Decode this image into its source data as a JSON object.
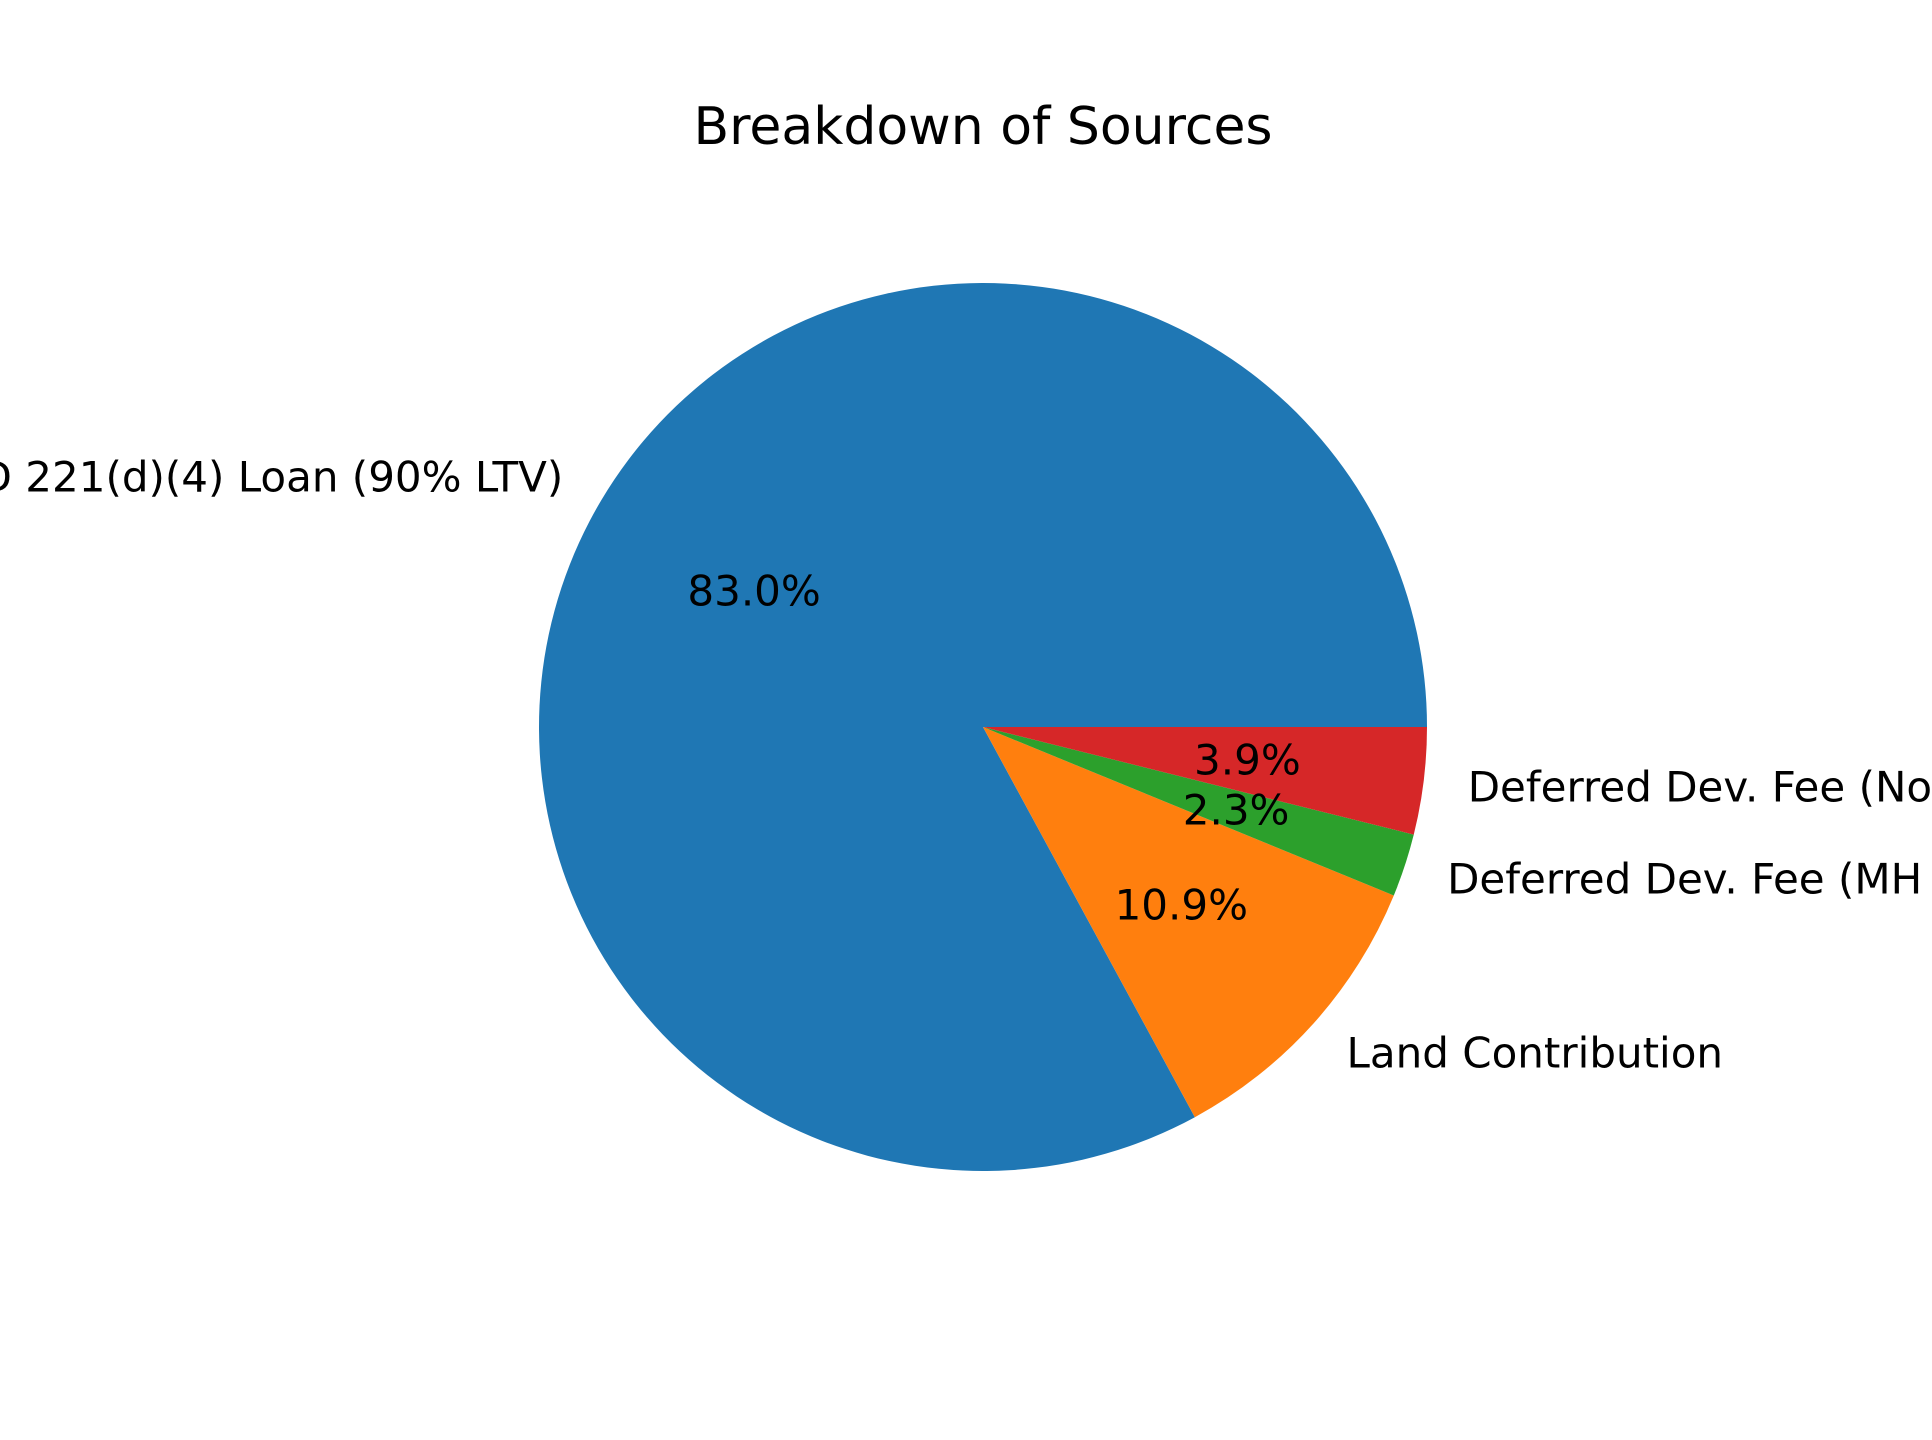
{
  "chart_data": {
    "type": "pie",
    "title": "Breakdown of Sources",
    "legend_position": "none",
    "start_angle_deg": 0,
    "direction": "counterclockwise",
    "autopct_format": "one-decimal-percent",
    "background_color": "#ffffff",
    "text_color": "#000000",
    "slices": [
      {
        "label": "D 221(d)(4) Loan (90% LTV)",
        "label_clipped_edge": "left",
        "value": 83.0,
        "pct_label": "83.0%",
        "color": "#1f77b4"
      },
      {
        "label": "Land Contribution",
        "label_clipped_edge": "none",
        "value": 10.9,
        "pct_label": "10.9%",
        "color": "#ff7f0e"
      },
      {
        "label": "Deferred Dev. Fee (MH",
        "label_clipped_edge": "right",
        "value": 2.3,
        "pct_label": "2.3%",
        "color": "#2ca02c"
      },
      {
        "label": "Deferred Dev. Fee (No",
        "label_clipped_edge": "right",
        "value": 3.9,
        "pct_label": "3.9%",
        "color": "#d62728"
      }
    ]
  }
}
